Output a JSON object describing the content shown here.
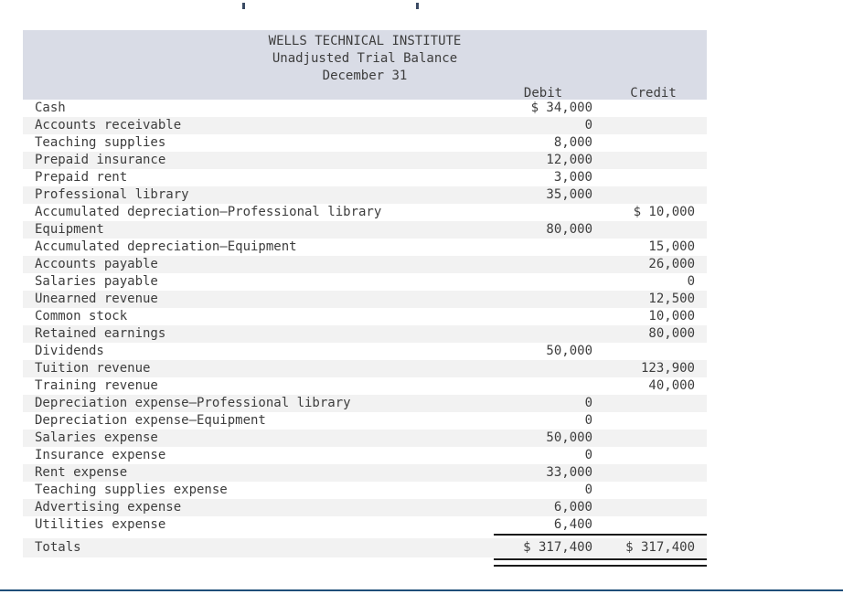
{
  "header": {
    "company": "WELLS TECHNICAL INSTITUTE",
    "statement": "Unadjusted Trial Balance",
    "date": "December 31"
  },
  "columns": {
    "debit": "Debit",
    "credit": "Credit"
  },
  "rows": [
    {
      "account": "Cash",
      "debit": "$ 34,000",
      "credit": ""
    },
    {
      "account": "Accounts receivable",
      "debit": "0",
      "credit": ""
    },
    {
      "account": "Teaching supplies",
      "debit": "8,000",
      "credit": ""
    },
    {
      "account": "Prepaid insurance",
      "debit": "12,000",
      "credit": ""
    },
    {
      "account": "Prepaid rent",
      "debit": "3,000",
      "credit": ""
    },
    {
      "account": "Professional library",
      "debit": "35,000",
      "credit": ""
    },
    {
      "account": "Accumulated depreciation—Professional library",
      "debit": "",
      "credit": "$ 10,000"
    },
    {
      "account": "Equipment",
      "debit": "80,000",
      "credit": ""
    },
    {
      "account": "Accumulated depreciation—Equipment",
      "debit": "",
      "credit": "15,000"
    },
    {
      "account": "Accounts payable",
      "debit": "",
      "credit": "26,000"
    },
    {
      "account": "Salaries payable",
      "debit": "",
      "credit": "0"
    },
    {
      "account": "Unearned revenue",
      "debit": "",
      "credit": "12,500"
    },
    {
      "account": "Common stock",
      "debit": "",
      "credit": "10,000"
    },
    {
      "account": "Retained earnings",
      "debit": "",
      "credit": "80,000"
    },
    {
      "account": "Dividends",
      "debit": "50,000",
      "credit": ""
    },
    {
      "account": "Tuition revenue",
      "debit": "",
      "credit": "123,900"
    },
    {
      "account": "Training revenue",
      "debit": "",
      "credit": "40,000"
    },
    {
      "account": "Depreciation expense—Professional library",
      "debit": "0",
      "credit": ""
    },
    {
      "account": "Depreciation expense—Equipment",
      "debit": "0",
      "credit": ""
    },
    {
      "account": "Salaries expense",
      "debit": "50,000",
      "credit": ""
    },
    {
      "account": "Insurance expense",
      "debit": "0",
      "credit": ""
    },
    {
      "account": "Rent expense",
      "debit": "33,000",
      "credit": ""
    },
    {
      "account": "Teaching supplies expense",
      "debit": "0",
      "credit": ""
    },
    {
      "account": "Advertising expense",
      "debit": "6,000",
      "credit": ""
    },
    {
      "account": "Utilities expense",
      "debit": "6,400",
      "credit": ""
    }
  ],
  "totals": {
    "label": "Totals",
    "debit": "$ 317,400",
    "credit": "$ 317,400"
  },
  "colors": {
    "header_band": "#d9dce6",
    "row_stripe": "#f2f2f2",
    "text": "#3d3d3d",
    "rule": "#1a1a1a",
    "bottom_line": "#1f4e79",
    "page_bg": "#ffffff"
  }
}
